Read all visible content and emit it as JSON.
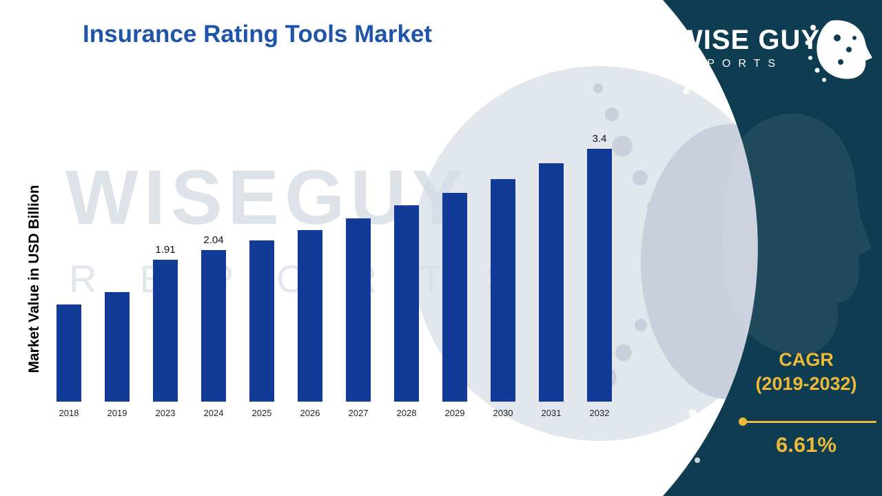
{
  "title": "Insurance Rating Tools Market",
  "y_axis": {
    "label": "Market Value in USD Billion"
  },
  "watermark": {
    "line1": "WISEGUY",
    "line2": "REPORTS"
  },
  "logo": {
    "name_top": "WISE GUY",
    "name_bottom": "REPORTS"
  },
  "panel": {
    "cagr_label_line1": "CAGR",
    "cagr_label_line2": "(2019-2032)",
    "cagr_value": "6.61%"
  },
  "colors": {
    "bar": "#123a97",
    "panel_background": "#0e3c50",
    "accent_yellow": "#edb93a",
    "title_blue": "#1f55a8"
  },
  "chart_data": {
    "type": "bar",
    "title": "Insurance Rating Tools Market",
    "ylabel": "Market Value in USD Billion",
    "xlabel": "",
    "categories": [
      "2018",
      "2019",
      "2023",
      "2024",
      "2025",
      "2026",
      "2027",
      "2028",
      "2029",
      "2030",
      "2031",
      "2032"
    ],
    "values": [
      1.31,
      1.47,
      1.91,
      2.04,
      2.17,
      2.31,
      2.46,
      2.64,
      2.81,
      2.99,
      3.2,
      3.4
    ],
    "data_labels": [
      "",
      "",
      "1.91",
      "2.04",
      "",
      "",
      "",
      "",
      "",
      "",
      "",
      "3.4"
    ],
    "ylim": [
      0,
      3.7
    ],
    "grid": false,
    "legend": false,
    "bar_color": "#123a97"
  }
}
